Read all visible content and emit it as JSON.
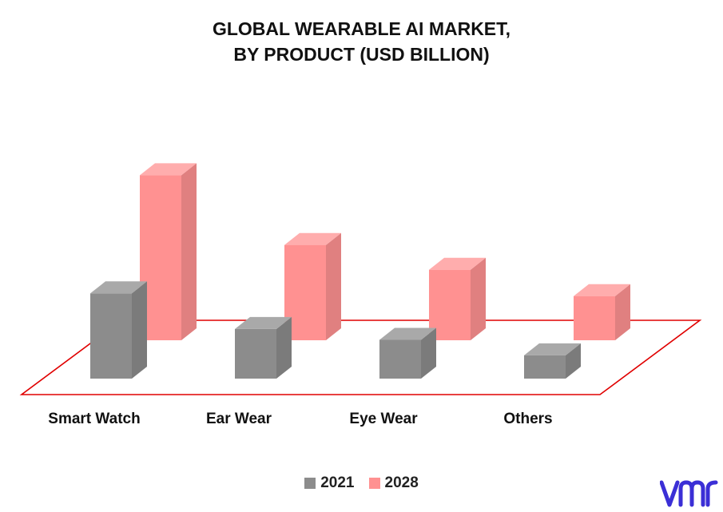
{
  "chart_data": {
    "type": "bar",
    "title_lines": [
      "GLOBAL WEARABLE AI MARKET,",
      "BY PRODUCT (USD BILLION)"
    ],
    "categories": [
      "Smart Watch",
      "Ear Wear",
      "Eye Wear",
      "Others"
    ],
    "series": [
      {
        "name": "2021",
        "values": [
          11.0,
          6.4,
          5.0,
          3.0
        ],
        "color": "#8c8c8c"
      },
      {
        "name": "2028",
        "values": [
          21.3,
          12.3,
          9.1,
          5.7
        ],
        "color": "#ff9191"
      }
    ],
    "ylim": [
      0,
      25
    ],
    "grid": false,
    "legend_position": "bottom",
    "floor_color": "#e00000"
  },
  "logo": {
    "icon": "vmr-logo-icon",
    "color": "#3b2fd6"
  }
}
